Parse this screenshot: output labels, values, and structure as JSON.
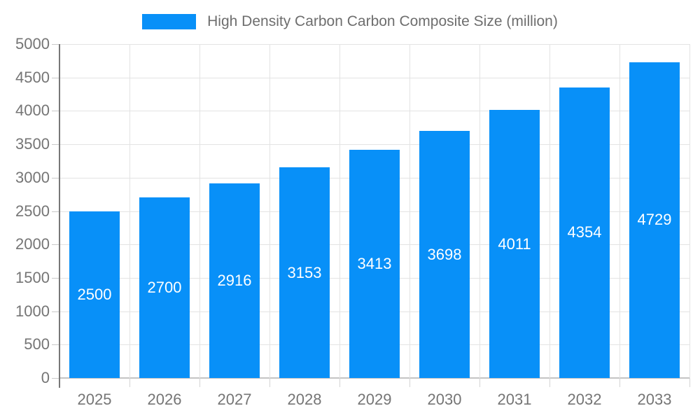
{
  "chart_data": {
    "type": "bar",
    "title": "High Density Carbon Carbon Composite Size (million)",
    "legend": {
      "position": "top",
      "label": "High Density Carbon Carbon Composite Size (million)",
      "swatch_color": "#0890F8"
    },
    "categories": [
      "2025",
      "2026",
      "2027",
      "2028",
      "2029",
      "2030",
      "2031",
      "2032",
      "2033"
    ],
    "values": [
      2500,
      2700,
      2916,
      3153,
      3413,
      3698,
      4011,
      4354,
      4729
    ],
    "xlabel": "",
    "ylabel": "",
    "ylim": [
      0,
      5000
    ],
    "ytick_step": 500,
    "yticks": [
      "0",
      "500",
      "1000",
      "1500",
      "2000",
      "2500",
      "3000",
      "3500",
      "4000",
      "4500",
      "5000"
    ],
    "grid": true,
    "colors": {
      "bar": "#0890F8",
      "value_label": "#ffffff",
      "axis_label": "#757575",
      "legend_label": "#6e6e6e",
      "gridline": "#e3e3e3",
      "axis_line": "#787878",
      "baseline": "#c4c4c4"
    }
  }
}
